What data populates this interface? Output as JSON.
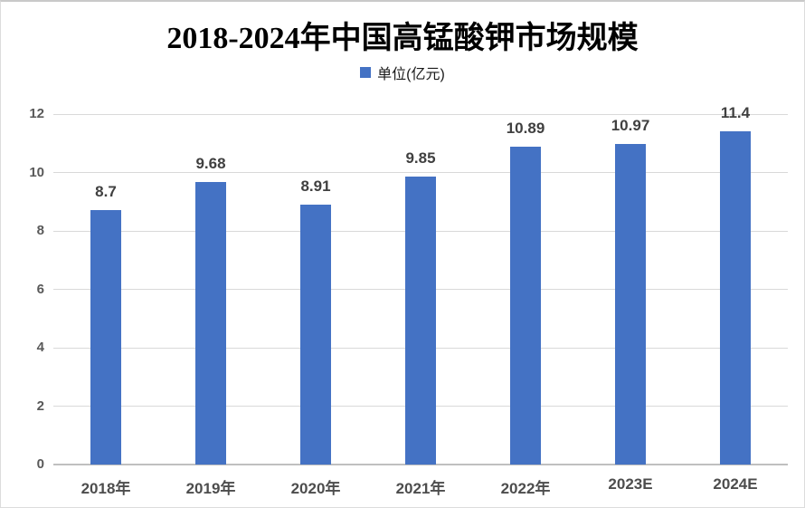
{
  "chart": {
    "title": "2018-2024年中国高锰酸钾市场规模",
    "legend_label": "单位(亿元)"
  },
  "colors": {
    "bar": "#4472C4",
    "gridline": "#D9D9D9",
    "axis_line": "#BFBFBF",
    "value_label": "#404040",
    "tick_label": "#595959",
    "title": "#000000"
  },
  "chart_data": {
    "type": "bar",
    "title": "2018-2024年中国高锰酸钾市场规模",
    "legend": [
      "单位(亿元)"
    ],
    "legend_position": "top",
    "categories": [
      "2018年",
      "2019年",
      "2020年",
      "2021年",
      "2022年",
      "2023E",
      "2024E"
    ],
    "values": [
      8.7,
      9.68,
      8.91,
      9.85,
      10.89,
      10.97,
      11.4
    ],
    "value_labels": [
      "8.7",
      "9.68",
      "8.91",
      "9.85",
      "10.89",
      "10.97",
      "11.4"
    ],
    "series_color": "#4472C4",
    "xlabel": "",
    "ylabel": "",
    "ylim": [
      0,
      12
    ],
    "yticks": [
      0,
      2,
      4,
      6,
      8,
      10,
      12
    ],
    "grid": true
  }
}
